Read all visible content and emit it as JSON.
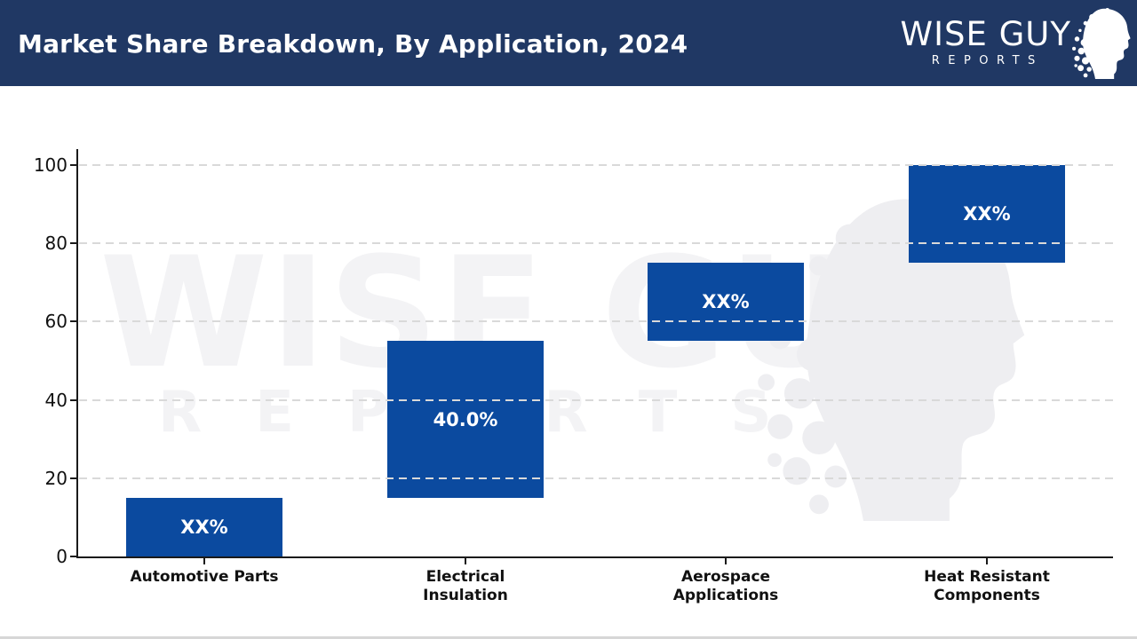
{
  "header": {
    "title": "Market Share Breakdown, By Application, 2024",
    "logo": {
      "name": "WISE GUY",
      "sub": "REPORTS"
    }
  },
  "watermark": {
    "name": "WISE GUY",
    "sub": "REPORTS"
  },
  "colors": {
    "header_bg": "#203864",
    "bar": "#0b4a9f",
    "bar_label": "#ffffff",
    "watermark": "#f3f3f5",
    "grid": "#d9d9d9",
    "axis": "#1a1a1a",
    "footer_line": "#d7d7d7"
  },
  "chart_data": {
    "type": "bar",
    "variant": "floating-waterfall",
    "title": "Market Share Breakdown, By Application, 2024",
    "xlabel": "",
    "ylabel": "",
    "categories": [
      "Automotive Parts",
      "Electrical Insulation",
      "Aerospace Applications",
      "Heat Resistant Components"
    ],
    "bars": [
      {
        "category": "Automotive Parts",
        "lines": [
          "Automotive Parts"
        ],
        "start": 0,
        "end": 15,
        "label": "XX%"
      },
      {
        "category": "Electrical Insulation",
        "lines": [
          "Electrical",
          "Insulation"
        ],
        "start": 15,
        "end": 55,
        "label": "40.0%"
      },
      {
        "category": "Aerospace Applications",
        "lines": [
          "Aerospace",
          "Applications"
        ],
        "start": 55,
        "end": 75,
        "label": "XX%"
      },
      {
        "category": "Heat Resistant Components",
        "lines": [
          "Heat Resistant",
          "Components"
        ],
        "start": 75,
        "end": 100,
        "label": "XX%"
      }
    ],
    "yticks": [
      0,
      20,
      40,
      60,
      80,
      100
    ],
    "ylim": [
      0,
      104
    ],
    "grid": "dashed-horizontal-over-bars",
    "legend": "none",
    "bar_color": "#0b4a9f",
    "value_labels_inside_bars": true
  }
}
